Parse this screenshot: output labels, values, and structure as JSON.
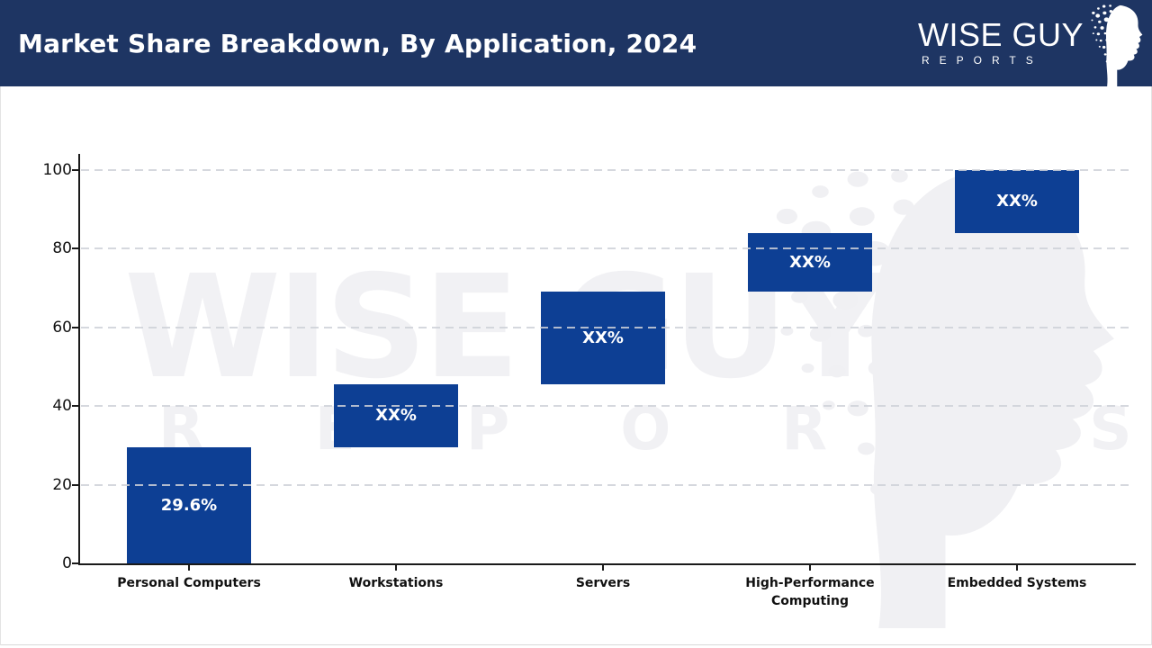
{
  "header": {
    "title": "Market Share Breakdown, By Application, 2024",
    "logo": {
      "name": "WISE GUY",
      "sub": "REPORTS"
    }
  },
  "watermark": {
    "name": "WISE GUY",
    "sub": "R E P O R T S"
  },
  "colors": {
    "header_bg": "#1e3563",
    "bar": "#0d3f94",
    "bar_label": "#ffffff",
    "axis": "#1a1a1a",
    "gridline": "#d3d6dd",
    "watermark": "#f1f1f4"
  },
  "chart_data": {
    "type": "bar",
    "subtype": "waterfall",
    "title": "Market Share Breakdown, By Application, 2024",
    "categories": [
      "Personal Computers",
      "Workstations",
      "Servers",
      "High-Performance Computing",
      "Embedded Systems"
    ],
    "series": [
      {
        "name": "Market Share (%)",
        "segments": [
          {
            "category": "Personal Computers",
            "start": 0,
            "end": 29.6,
            "label": "29.6%"
          },
          {
            "category": "Workstations",
            "start": 29.6,
            "end": 45.5,
            "label": "XX%"
          },
          {
            "category": "Servers",
            "start": 45.5,
            "end": 69,
            "label": "XX%"
          },
          {
            "category": "High-Performance Computing",
            "start": 69,
            "end": 84,
            "label": "XX%"
          },
          {
            "category": "Embedded Systems",
            "start": 84,
            "end": 100,
            "label": "XX%"
          }
        ]
      }
    ],
    "ylim": [
      0,
      100
    ],
    "yticks": [
      0,
      20,
      40,
      60,
      80,
      100
    ],
    "xlabel": "",
    "ylabel": "",
    "legend": "none",
    "grid": {
      "horizontal": true,
      "style": "dashed"
    }
  }
}
